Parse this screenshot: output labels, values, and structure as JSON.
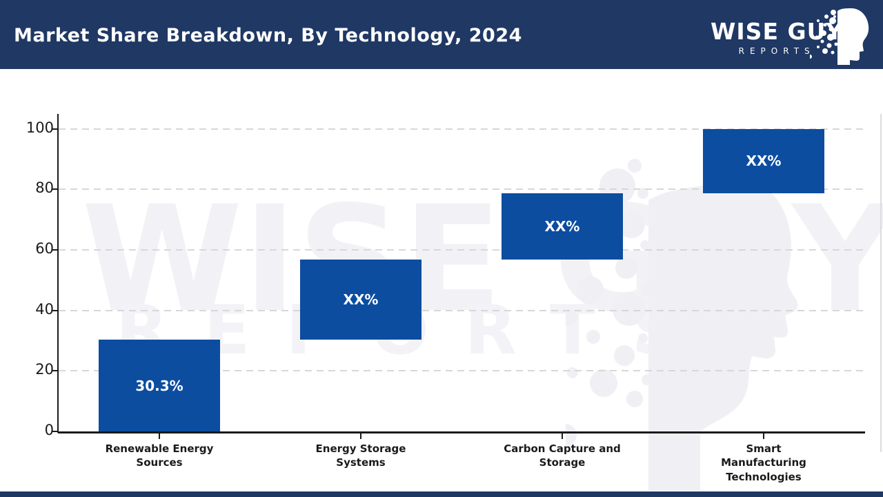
{
  "header": {
    "title": "Market Share Breakdown, By Technology, 2024",
    "logo": {
      "line1": "WISE GUY",
      "line2": "REPORTS"
    }
  },
  "watermark": {
    "line1": "WISE GUY",
    "line2": "REPORTS"
  },
  "footer": {
    "bar_color": "#1F3864"
  },
  "colors": {
    "header_navy": "#1F3864",
    "bar_blue": "#0C4DA0",
    "gridline_gray": "#D7D7D7",
    "axis_black": "#1a1a1a",
    "watermark_gray": "#F2F2F6",
    "bar_label_white": "#FFFFFF"
  },
  "chart_data": {
    "type": "bar",
    "subtype": "waterfall",
    "title": "Market Share Breakdown, By Technology, 2024",
    "xlabel": "",
    "ylabel": "",
    "ylim": [
      0,
      105
    ],
    "yticks": [
      0,
      20,
      40,
      60,
      80,
      100
    ],
    "grid": "horizontal dashed",
    "legend": "none",
    "categories": [
      [
        "Renewable Energy",
        "Sources"
      ],
      [
        "Energy Storage",
        "Systems"
      ],
      [
        "Carbon Capture and",
        "Storage"
      ],
      [
        "Smart",
        "Manufacturing",
        "Technologies"
      ]
    ],
    "segments": [
      {
        "start": 0,
        "end": 30.3,
        "label": "30.3%"
      },
      {
        "start": 30.3,
        "end": 56.7,
        "label": "XX%"
      },
      {
        "start": 56.7,
        "end": 78.6,
        "label": "XX%"
      },
      {
        "start": 78.6,
        "end": 100,
        "label": "XX%"
      }
    ]
  }
}
